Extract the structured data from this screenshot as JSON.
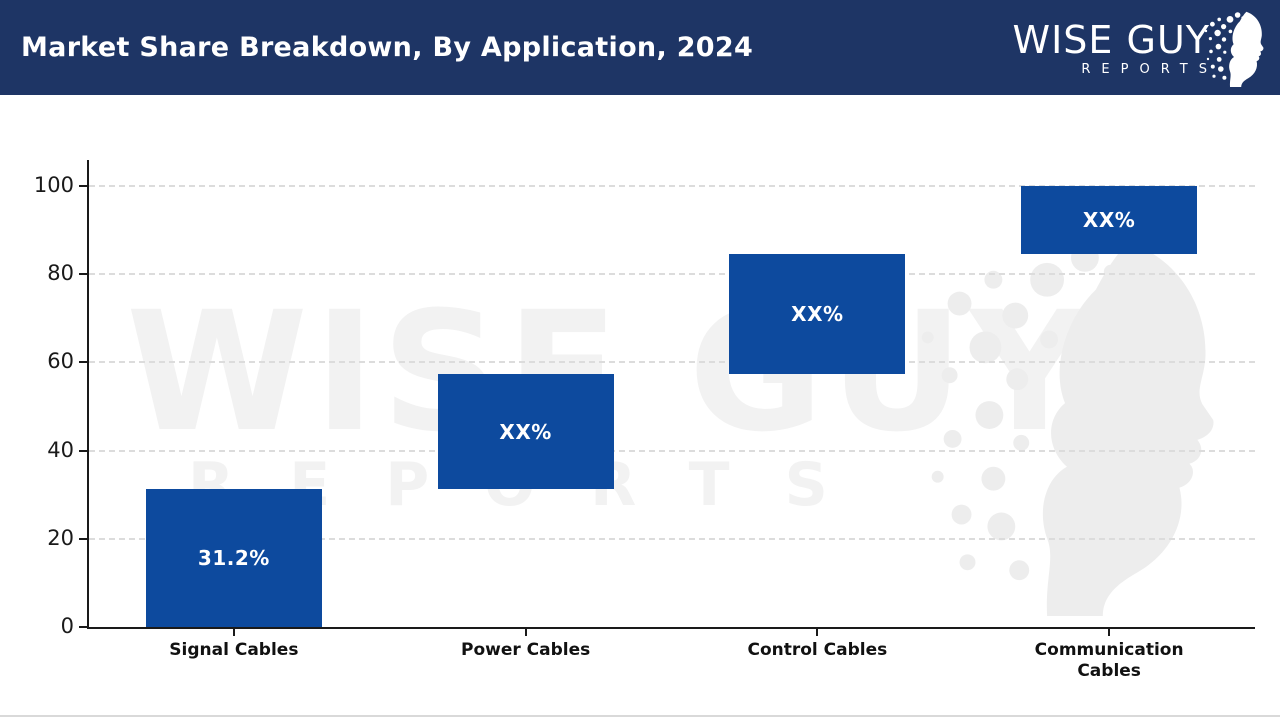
{
  "header": {
    "title": "Market Share Breakdown, By Application, 2024",
    "bg_color": "#1e3565",
    "text_color": "#ffffff",
    "logo": {
      "name": "WISE GUY",
      "subtitle": "REPORTS"
    }
  },
  "watermark": {
    "wordmark": "WISE GUY",
    "subtitle": "REPORTS",
    "color": "#f2f2f2"
  },
  "icons": {
    "logo_face": "dotted-head-profile-icon",
    "watermark_face": "dotted-head-profile-icon"
  },
  "footer": {
    "divider_color": "#d9d9d9"
  },
  "chart_data": {
    "type": "bar",
    "variant": "waterfall",
    "title": "Market Share Breakdown, By Application, 2024",
    "categories": [
      "Signal Cables",
      "Power Cables",
      "Control Cables",
      "Communication Cables"
    ],
    "segments": [
      {
        "category": "Signal Cables",
        "start": 0,
        "end": 31.2,
        "label": "31.2%"
      },
      {
        "category": "Power Cables",
        "start": 31.2,
        "end": 57.4,
        "label": "XX%"
      },
      {
        "category": "Control Cables",
        "start": 57.4,
        "end": 84.6,
        "label": "XX%"
      },
      {
        "category": "Communication Cables",
        "start": 84.6,
        "end": 100,
        "label": "XX%"
      }
    ],
    "xlabel": "",
    "ylabel": "",
    "ylim": [
      0,
      106
    ],
    "yticks": [
      0,
      20,
      40,
      60,
      80,
      100
    ],
    "grid": "horizontal-dashed",
    "legend": null,
    "colors": {
      "bar": "#0d4a9e",
      "bar_label": "#ffffff",
      "axis": "#1a1a1a",
      "gridline": "#dcdcdc"
    }
  }
}
